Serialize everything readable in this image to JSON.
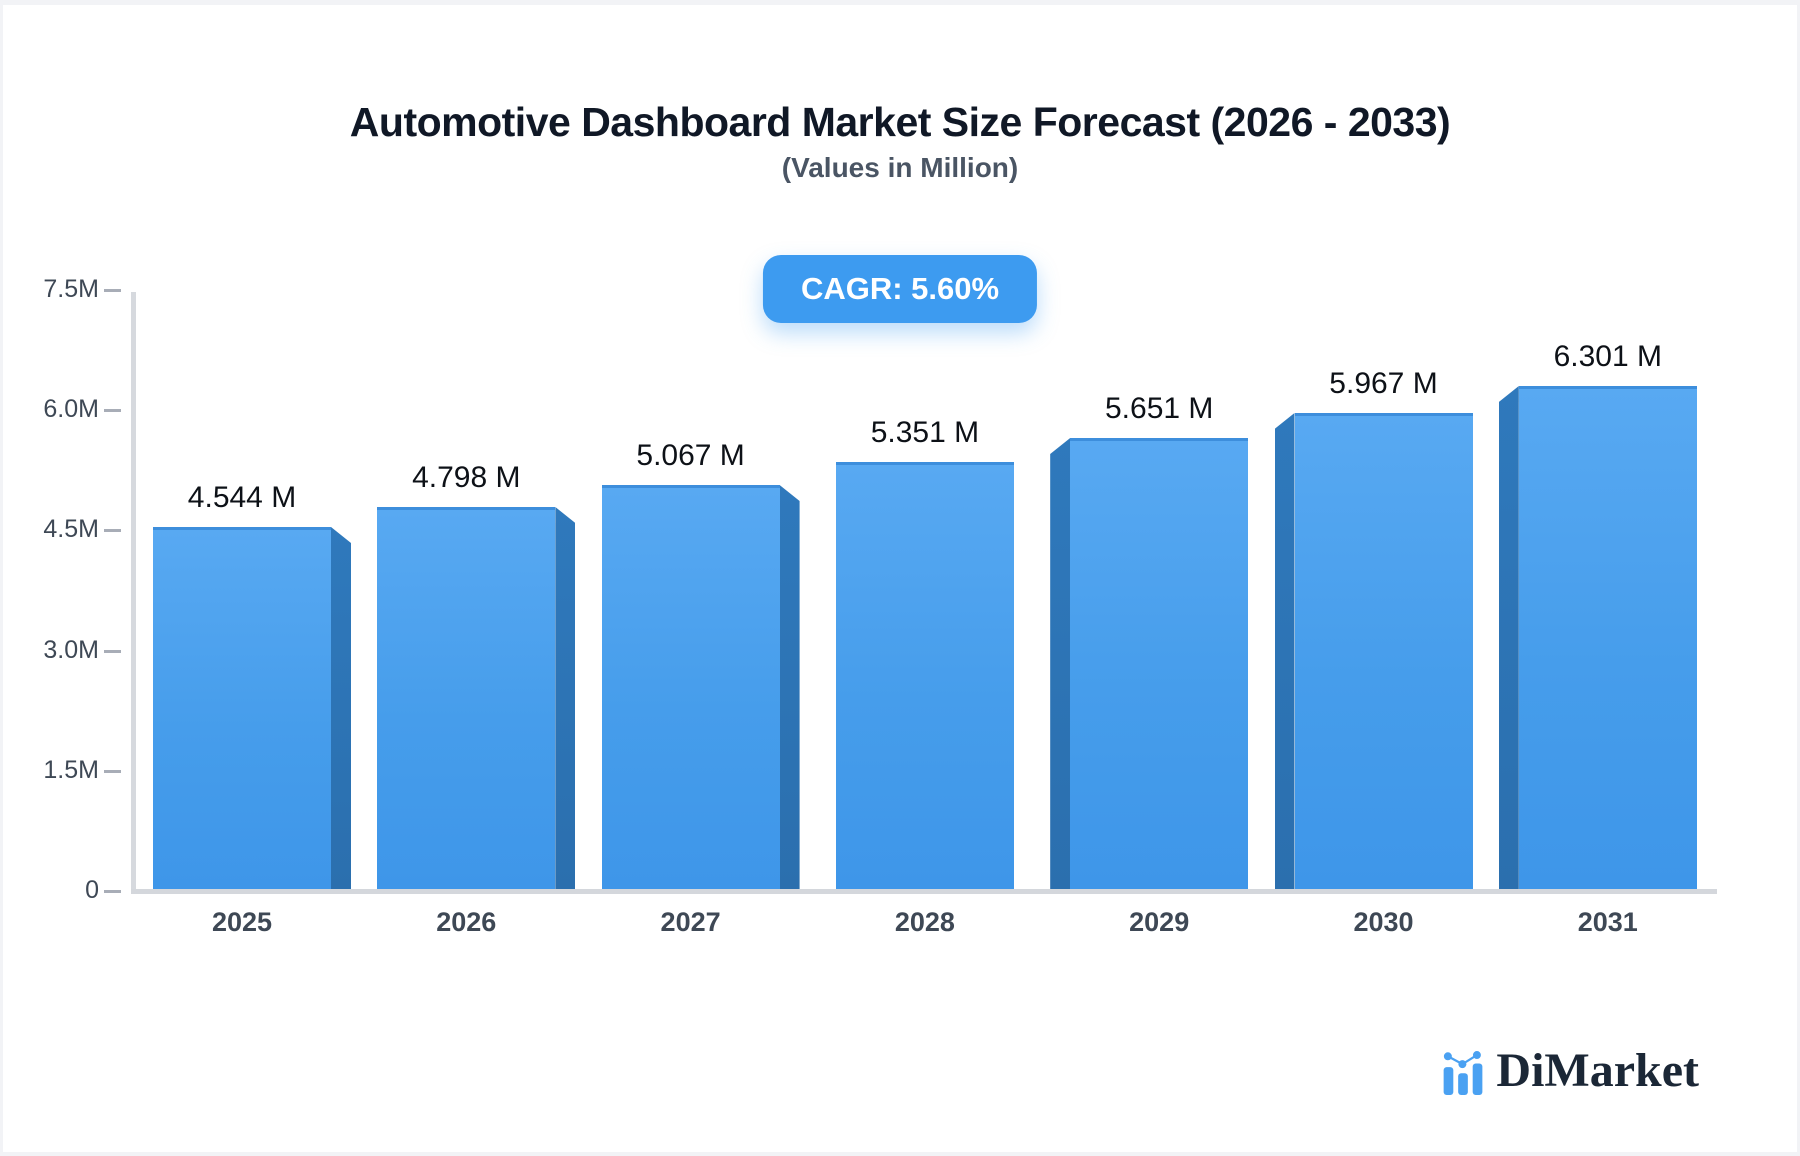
{
  "header": {
    "title": "Automotive Dashboard Market Size Forecast (2026 - 2033)",
    "subtitle": "(Values in Million)"
  },
  "cagr_badge": {
    "text": "CAGR: 5.60%",
    "background": "#3d9bf0",
    "text_color": "#ffffff"
  },
  "chart_data": {
    "type": "bar",
    "title": "Automotive Dashboard Market Size Forecast (2026 - 2033)",
    "subtitle": "(Values in Million)",
    "unit": "Million",
    "cagr": "5.60%",
    "categories": [
      "2025",
      "2026",
      "2027",
      "2028",
      "2029",
      "2030",
      "2031"
    ],
    "values": [
      4.544,
      4.798,
      5.067,
      5.351,
      5.651,
      5.967,
      6.301
    ],
    "value_labels": [
      "4.544 M",
      "4.798 M",
      "5.067 M",
      "5.351 M",
      "5.651 M",
      "5.967 M",
      "6.301 M"
    ],
    "ylim": [
      0,
      7.5
    ],
    "yticks": [
      {
        "label": "7.5M",
        "value": 7.5
      },
      {
        "label": "6.0M",
        "value": 6.0
      },
      {
        "label": "4.5M",
        "value": 4.5
      },
      {
        "label": "3.0M",
        "value": 3.0
      },
      {
        "label": "1.5M",
        "value": 1.5
      },
      {
        "label": "0",
        "value": 0
      }
    ],
    "grid": false,
    "legend": false,
    "bar_color": "#459cec",
    "bar_side_color": "#2d74b6",
    "axis_color": "#d6d9de",
    "label_color": "#3e4855"
  },
  "logo": {
    "text": "DiMarket",
    "icon": "dimarket-bars-icon",
    "text_color": "#1b2736",
    "accent_color": "#4aa1f2"
  }
}
